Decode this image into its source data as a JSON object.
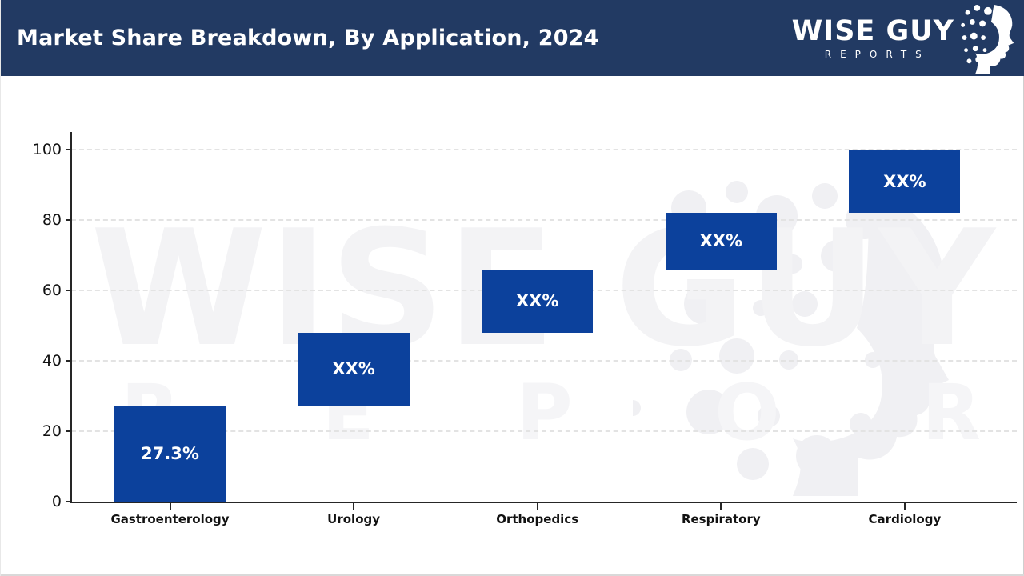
{
  "header": {
    "title": "Market Share Breakdown, By Application, 2024",
    "bg_color": "#223a63",
    "logo": {
      "line1": "WISE GUY",
      "line2": "REPORTS"
    }
  },
  "watermark": {
    "line1": "WISE GUY",
    "line2": "REPORTS"
  },
  "chart_data": {
    "type": "bar",
    "subtype": "floating-segment-waterfall",
    "title": "Market Share Breakdown, By Application, 2024",
    "xlabel": "",
    "ylabel": "",
    "categories": [
      "Gastroenterology",
      "Urology",
      "Orthopedics",
      "Respiratory",
      "Cardiology"
    ],
    "segments": [
      {
        "category": "Gastroenterology",
        "start": 0,
        "end": 27.3,
        "label": "27.3%"
      },
      {
        "category": "Urology",
        "start": 27.3,
        "end": 48,
        "label": "XX%"
      },
      {
        "category": "Orthopedics",
        "start": 48,
        "end": 66,
        "label": "XX%"
      },
      {
        "category": "Respiratory",
        "start": 66,
        "end": 82,
        "label": "XX%"
      },
      {
        "category": "Cardiology",
        "start": 82,
        "end": 100,
        "label": "XX%"
      }
    ],
    "yticks": [
      0,
      20,
      40,
      60,
      80,
      100
    ],
    "ylim": [
      0,
      105
    ],
    "grid": "horizontal-dashed",
    "legend": "none",
    "bar_color": "#0c419c",
    "bar_label_color": "#ffffff",
    "axis_color": "#262626",
    "gridline_color": "#e3e3e3"
  }
}
